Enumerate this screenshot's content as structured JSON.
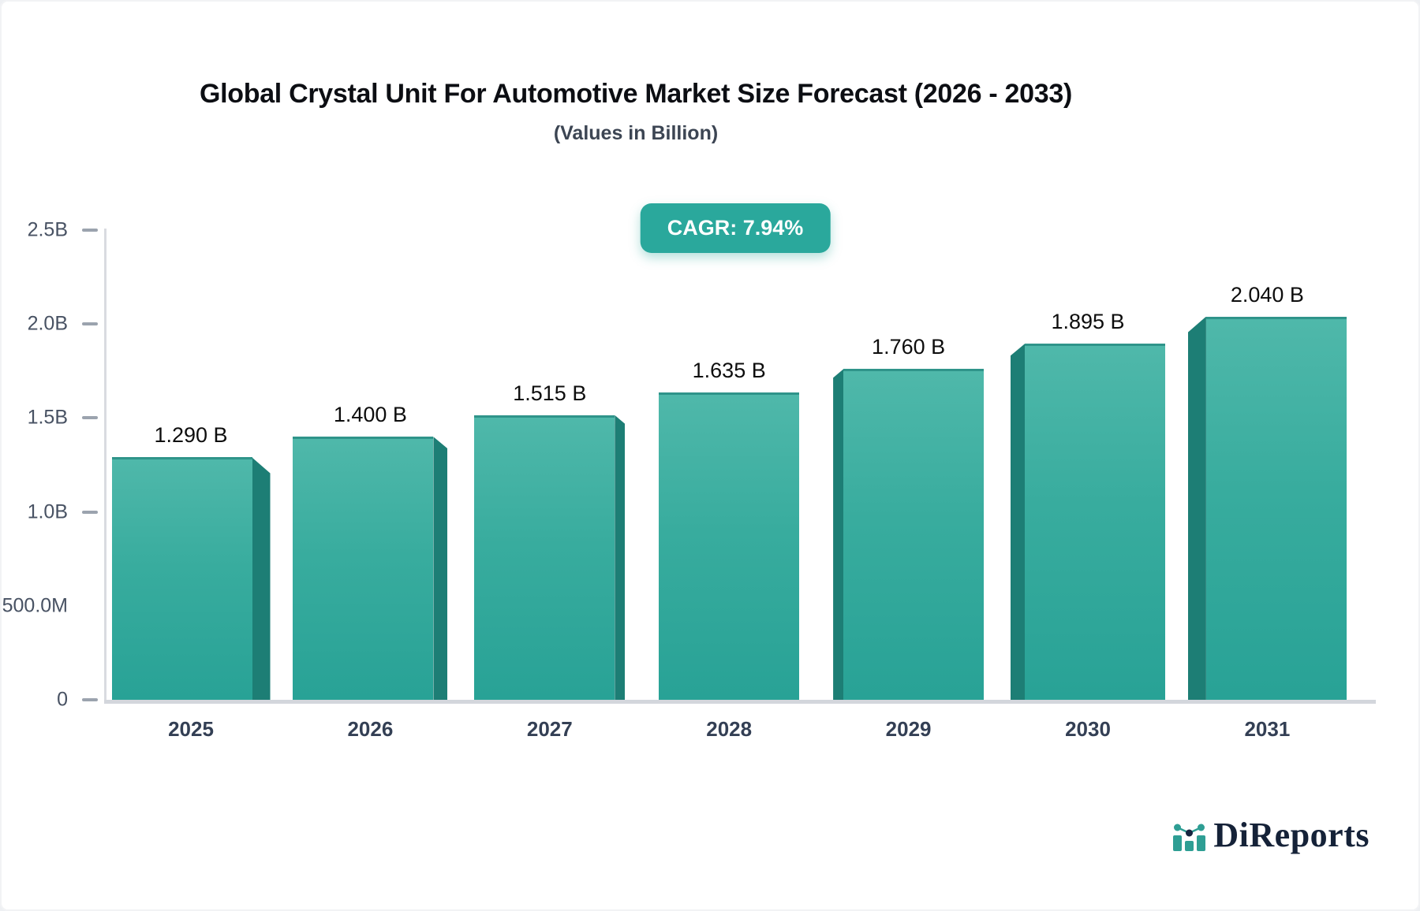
{
  "header": {
    "title": "Global Crystal Unit For Automotive Market Size Forecast (2026 - 2033)",
    "subtitle": "(Values in Billion)"
  },
  "badge": {
    "label": "CAGR: 7.94%",
    "background_color": "#2aa89c",
    "text_color": "#ffffff"
  },
  "chart_data": {
    "type": "bar",
    "title": "Global Crystal Unit For Automotive Market Size Forecast (2026 - 2033)",
    "subtitle": "(Values in Billion)",
    "cagr": "7.94%",
    "categories": [
      "2025",
      "2026",
      "2027",
      "2028",
      "2029",
      "2030",
      "2031"
    ],
    "values": [
      1.29,
      1.4,
      1.515,
      1.635,
      1.76,
      1.895,
      2.04
    ],
    "value_labels": [
      "1.290 B",
      "1.400 B",
      "1.515 B",
      "1.635 B",
      "1.760 B",
      "1.895 B",
      "2.040 B"
    ],
    "unit": "Billion",
    "ylim": [
      0,
      2.5
    ],
    "yticks": [
      {
        "label": "2.5B",
        "value": 2.5,
        "dash": true
      },
      {
        "label": "2.0B",
        "value": 2.0,
        "dash": true
      },
      {
        "label": "1.5B",
        "value": 1.5,
        "dash": true
      },
      {
        "label": "1.0B",
        "value": 1.0,
        "dash": true
      },
      {
        "label": "500.0M",
        "value": 0.5,
        "dash": false
      },
      {
        "label": "0",
        "value": 0.0,
        "dash": true
      }
    ],
    "grid": false,
    "legend": "none",
    "bar_color_top": "#4fb8aa",
    "bar_color_bottom": "#28a296",
    "bar_side_color": "#1d7e75",
    "effect": "3d-center-perspective"
  },
  "logo": {
    "icon": "bar-line-chart-icon",
    "text": "DiReports",
    "icon_color": "#2e9e94",
    "text_color": "#152238"
  }
}
